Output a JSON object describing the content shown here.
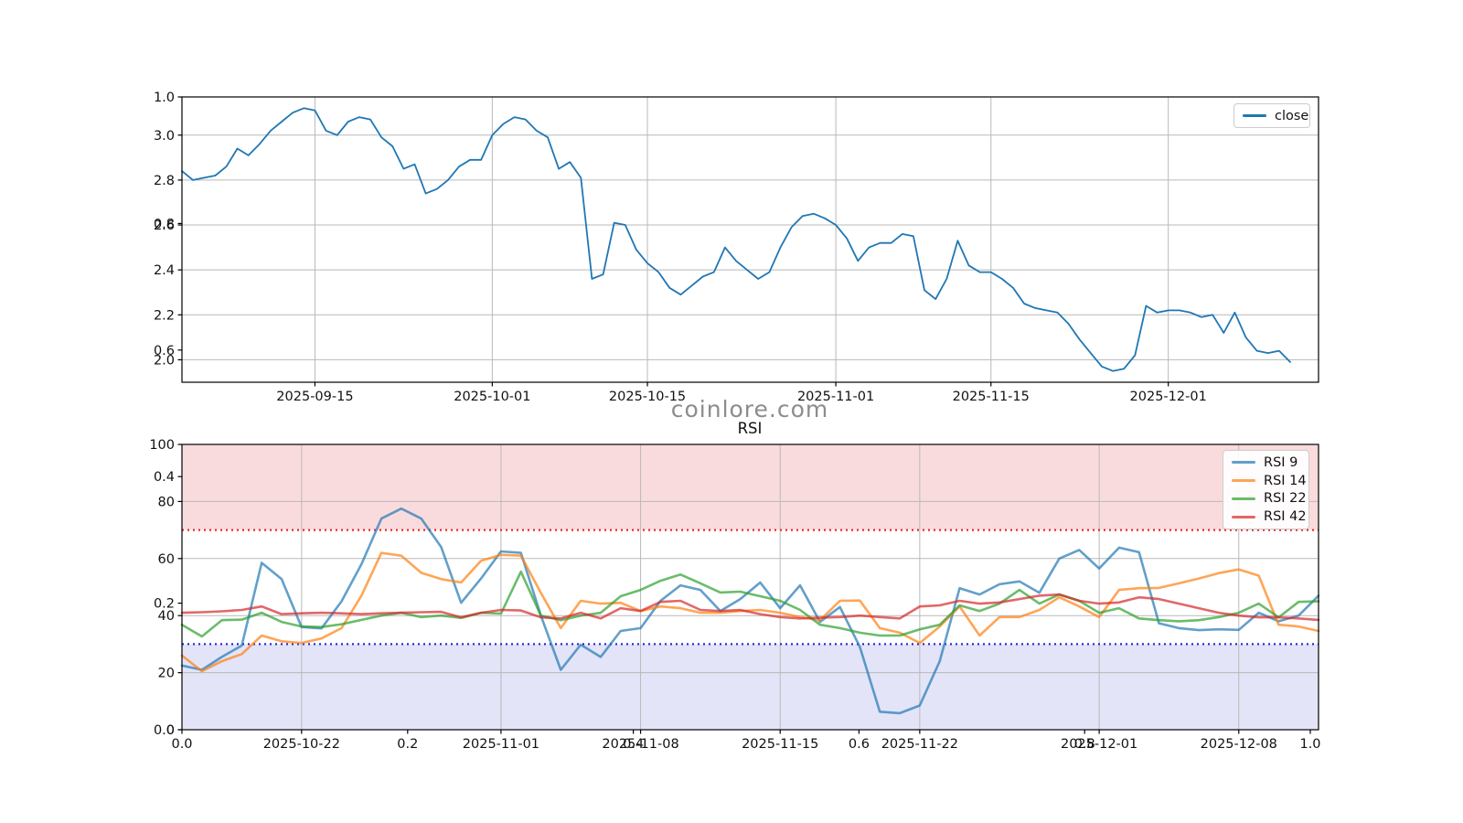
{
  "watermark": {
    "text": "coinlore.com",
    "color": "#8c8c8c"
  },
  "style": {
    "grid_color": "#b9b9b9",
    "spine_color": "#000000",
    "tick_label_color": "#111111",
    "background": "#ffffff"
  },
  "chart_data": [
    {
      "type": "line",
      "title": "",
      "xlabel": "",
      "ylabel": "",
      "legend_position": "upper right",
      "grid": true,
      "ylim": [
        1.9,
        3.17
      ],
      "yticks": [
        {
          "label": "3.0",
          "value": 3.0
        },
        {
          "label": "2.8",
          "value": 2.8
        },
        {
          "label": "2.6",
          "value": 2.6
        },
        {
          "label": "2.4",
          "value": 2.4
        },
        {
          "label": "2.2",
          "value": 2.2
        },
        {
          "label": "2.0",
          "value": 2.0
        }
      ],
      "twin_yticks": [
        {
          "label": "1.0",
          "value": 1.0
        },
        {
          "label": "0.8",
          "value": 0.8
        },
        {
          "label": "0.6",
          "value": 0.6
        }
      ],
      "xticks": [
        "2025-09-15",
        "2025-10-01",
        "2025-10-15",
        "2025-11-01",
        "2025-11-15",
        "2025-12-01"
      ],
      "dates": [
        "2025-09-03",
        "2025-09-04",
        "2025-09-05",
        "2025-09-06",
        "2025-09-07",
        "2025-09-08",
        "2025-09-09",
        "2025-09-10",
        "2025-09-11",
        "2025-09-12",
        "2025-09-13",
        "2025-09-14",
        "2025-09-15",
        "2025-09-16",
        "2025-09-17",
        "2025-09-18",
        "2025-09-19",
        "2025-09-20",
        "2025-09-21",
        "2025-09-22",
        "2025-09-23",
        "2025-09-24",
        "2025-09-25",
        "2025-09-26",
        "2025-09-27",
        "2025-09-28",
        "2025-09-29",
        "2025-09-30",
        "2025-10-01",
        "2025-10-02",
        "2025-10-03",
        "2025-10-04",
        "2025-10-05",
        "2025-10-06",
        "2025-10-07",
        "2025-10-08",
        "2025-10-09",
        "2025-10-10",
        "2025-10-11",
        "2025-10-12",
        "2025-10-13",
        "2025-10-14",
        "2025-10-15",
        "2025-10-16",
        "2025-10-17",
        "2025-10-18",
        "2025-10-19",
        "2025-10-20",
        "2025-10-21",
        "2025-10-22",
        "2025-10-23",
        "2025-10-24",
        "2025-10-25",
        "2025-10-26",
        "2025-10-27",
        "2025-10-28",
        "2025-10-29",
        "2025-10-30",
        "2025-10-31",
        "2025-11-01",
        "2025-11-02",
        "2025-11-03",
        "2025-11-04",
        "2025-11-05",
        "2025-11-06",
        "2025-11-07",
        "2025-11-08",
        "2025-11-09",
        "2025-11-10",
        "2025-11-11",
        "2025-11-12",
        "2025-11-13",
        "2025-11-14",
        "2025-11-15",
        "2025-11-16",
        "2025-11-17",
        "2025-11-18",
        "2025-11-19",
        "2025-11-20",
        "2025-11-21",
        "2025-11-22",
        "2025-11-23",
        "2025-11-24",
        "2025-11-25",
        "2025-11-26",
        "2025-11-27",
        "2025-11-28",
        "2025-11-29",
        "2025-11-30",
        "2025-12-01",
        "2025-12-02",
        "2025-12-03",
        "2025-12-04",
        "2025-12-05",
        "2025-12-06",
        "2025-12-07",
        "2025-12-08",
        "2025-12-09",
        "2025-12-10",
        "2025-12-11",
        "2025-12-12"
      ],
      "series": [
        {
          "name": "close",
          "color": "#1f77b4",
          "values": [
            2.84,
            2.8,
            2.81,
            2.82,
            2.86,
            2.94,
            2.91,
            2.96,
            3.02,
            3.06,
            3.1,
            3.12,
            3.11,
            3.02,
            3.0,
            3.06,
            3.08,
            3.07,
            2.99,
            2.95,
            2.85,
            2.87,
            2.74,
            2.76,
            2.8,
            2.86,
            2.89,
            2.89,
            3.0,
            3.05,
            3.08,
            3.07,
            3.02,
            2.99,
            2.85,
            2.88,
            2.81,
            2.36,
            2.38,
            2.61,
            2.6,
            2.49,
            2.43,
            2.39,
            2.32,
            2.29,
            2.33,
            2.37,
            2.39,
            2.5,
            2.44,
            2.4,
            2.36,
            2.39,
            2.5,
            2.59,
            2.64,
            2.65,
            2.63,
            2.6,
            2.54,
            2.44,
            2.5,
            2.52,
            2.52,
            2.56,
            2.55,
            2.31,
            2.27,
            2.36,
            2.53,
            2.42,
            2.39,
            2.39,
            2.36,
            2.32,
            2.25,
            2.23,
            2.22,
            2.21,
            2.16,
            2.09,
            2.03,
            1.97,
            1.95,
            1.96,
            2.02,
            2.24,
            2.21,
            2.22,
            2.22,
            2.21,
            2.19,
            2.2,
            2.12,
            2.21,
            2.1,
            2.04,
            2.03,
            2.04,
            1.99
          ]
        }
      ]
    },
    {
      "type": "line",
      "title": "RSI",
      "xlabel": "",
      "ylabel": "",
      "legend_position": "upper right",
      "grid": true,
      "ylim": [
        0,
        100
      ],
      "yticks": [
        {
          "label": "100",
          "value": 100
        },
        {
          "label": "80",
          "value": 80
        },
        {
          "label": "60",
          "value": 60
        },
        {
          "label": "40",
          "value": 40
        },
        {
          "label": "20",
          "value": 20
        },
        {
          "label": "0",
          "value": 0
        }
      ],
      "twin_yticks": [
        {
          "label": "0.4",
          "value": 0.4
        },
        {
          "label": "0.2",
          "value": 0.2
        },
        {
          "label": "0.0",
          "value": 0.0
        }
      ],
      "xticks": [
        "2025-10-22",
        "2025-11-01",
        "2025-11-08",
        "2025-11-15",
        "2025-11-22",
        "2025-12-01",
        "2025-12-08"
      ],
      "twin_xticks": [
        {
          "label": "0.0",
          "value": 0.0
        },
        {
          "label": "0.2",
          "value": 0.2
        },
        {
          "label": "0.4",
          "value": 0.4
        },
        {
          "label": "0.6",
          "value": 0.6
        },
        {
          "label": "0.8",
          "value": 0.8
        },
        {
          "label": "1.0",
          "value": 1.0
        }
      ],
      "bands": [
        {
          "from": 70,
          "to": 100,
          "color": "#fadbdd",
          "meaning": "overbought zone"
        },
        {
          "from": 0,
          "to": 30,
          "color": "#e4e4f8",
          "meaning": "oversold zone"
        }
      ],
      "hlines": [
        {
          "value": 70,
          "color": "#e82c2c",
          "style": "dotted"
        },
        {
          "value": 30,
          "color": "#2c2cd6",
          "style": "dotted"
        }
      ],
      "dates": [
        "2025-10-16",
        "2025-10-17",
        "2025-10-18",
        "2025-10-19",
        "2025-10-20",
        "2025-10-21",
        "2025-10-22",
        "2025-10-23",
        "2025-10-24",
        "2025-10-25",
        "2025-10-26",
        "2025-10-27",
        "2025-10-28",
        "2025-10-29",
        "2025-10-30",
        "2025-10-31",
        "2025-11-01",
        "2025-11-02",
        "2025-11-03",
        "2025-11-04",
        "2025-11-05",
        "2025-11-06",
        "2025-11-07",
        "2025-11-08",
        "2025-11-09",
        "2025-11-10",
        "2025-11-11",
        "2025-11-12",
        "2025-11-13",
        "2025-11-14",
        "2025-11-15",
        "2025-11-16",
        "2025-11-17",
        "2025-11-18",
        "2025-11-19",
        "2025-11-20",
        "2025-11-21",
        "2025-11-22",
        "2025-11-23",
        "2025-11-24",
        "2025-11-25",
        "2025-11-26",
        "2025-11-27",
        "2025-11-28",
        "2025-11-29",
        "2025-11-30",
        "2025-12-01",
        "2025-12-02",
        "2025-12-03",
        "2025-12-04",
        "2025-12-05",
        "2025-12-06",
        "2025-12-07",
        "2025-12-08",
        "2025-12-09",
        "2025-12-10",
        "2025-12-11",
        "2025-12-12"
      ],
      "series": [
        {
          "name": "RSI 9",
          "color": "#1f77b4",
          "values": [
            22.5,
            21,
            25.5,
            29.5,
            58.5,
            52.8,
            36,
            35.5,
            45,
            58,
            74,
            77.5,
            74,
            64,
            44.5,
            53,
            62.5,
            62,
            40,
            21,
            29.8,
            25.5,
            34.6,
            35.6,
            45.2,
            50.6,
            49,
            41.6,
            45.8,
            51.6,
            42.6,
            50.6,
            37.8,
            43,
            29,
            6.3,
            5.8,
            8.5,
            24,
            49.6,
            47.4,
            51,
            52,
            48,
            60,
            63,
            56.5,
            63.8,
            62.2,
            37.3,
            35.6,
            34.9,
            35.2,
            35,
            41,
            38,
            40,
            47
          ]
        },
        {
          "name": "RSI 14",
          "color": "#ff7f0e",
          "values": [
            26,
            20.5,
            24,
            26.5,
            33,
            31,
            30.4,
            32,
            35.6,
            47,
            62,
            61,
            55,
            52.8,
            51.6,
            59.2,
            61.3,
            61,
            48,
            35.6,
            45.2,
            44.2,
            44.5,
            41.6,
            43.2,
            42.6,
            41,
            41,
            41.6,
            42,
            41,
            39.5,
            38.4,
            45.2,
            45.3,
            35.6,
            34,
            30.4,
            36.2,
            43.2,
            33,
            39.5,
            39.5,
            42,
            46.4,
            43.2,
            39.5,
            49,
            49.6,
            49.7,
            51.3,
            53,
            54.9,
            56.2,
            54,
            36.8,
            36.2,
            34.6
          ]
        },
        {
          "name": "RSI 22",
          "color": "#2ca02c",
          "values": [
            36.8,
            32.7,
            38.4,
            38.6,
            41,
            37.8,
            36.2,
            36,
            37,
            38.5,
            40,
            41,
            39.5,
            40,
            39.2,
            41,
            40.7,
            55.4,
            40,
            38.4,
            40,
            41,
            46.8,
            49,
            52.2,
            54.4,
            51.3,
            48.1,
            48.4,
            46.8,
            45.2,
            42,
            36.8,
            35.6,
            34,
            33,
            33,
            35.2,
            36.8,
            43.6,
            41.6,
            44.2,
            49,
            44.2,
            47.4,
            45.2,
            41,
            42.6,
            39,
            38.4,
            38,
            38.4,
            39.5,
            41,
            44.2,
            39.4,
            44.8,
            45
          ]
        },
        {
          "name": "RSI 42",
          "color": "#d62728",
          "values": [
            41,
            41.2,
            41.5,
            42,
            43.2,
            40.5,
            40.8,
            41,
            40.8,
            40.5,
            40.8,
            41,
            41.2,
            41.3,
            39.4,
            41,
            42,
            41.8,
            39.4,
            39,
            41,
            39,
            42.6,
            41.6,
            44.8,
            45.2,
            42,
            41.6,
            42,
            40.5,
            39.5,
            39,
            39.3,
            39.5,
            40,
            39.5,
            39,
            43.2,
            43.6,
            45.2,
            44.2,
            44.6,
            45.8,
            47,
            47.4,
            45.2,
            44.2,
            44.6,
            46.4,
            45.8,
            44.2,
            42.6,
            41,
            40,
            39.4,
            39.4,
            39,
            38.5
          ]
        }
      ]
    }
  ]
}
